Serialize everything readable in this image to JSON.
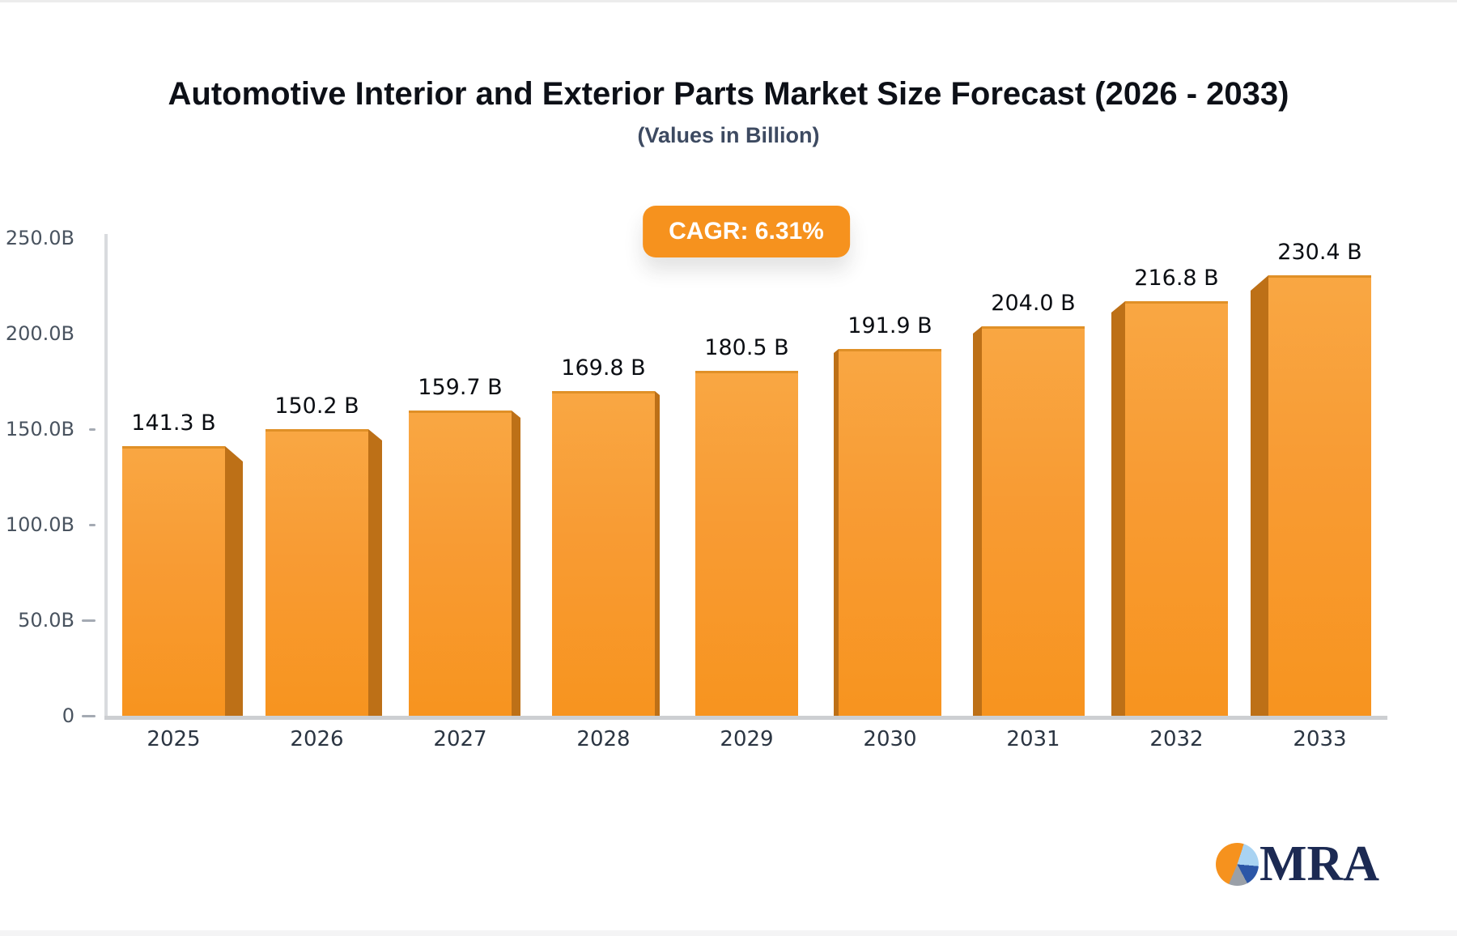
{
  "header": {
    "title": "Automotive Interior and Exterior Parts Market Size Forecast (2026 - 2033)",
    "subtitle": "(Values in Billion)"
  },
  "badge": {
    "label": "CAGR: 6.31%",
    "background": "#F6921E",
    "text_color": "#FFFFFF"
  },
  "chart_data": {
    "type": "bar",
    "title": "Automotive Interior and Exterior Parts Market Size Forecast (2026 - 2033)",
    "subtitle": "(Values in Billion)",
    "annotation": "CAGR: 6.31%",
    "categories": [
      "2025",
      "2026",
      "2027",
      "2028",
      "2029",
      "2030",
      "2031",
      "2032",
      "2033"
    ],
    "values": [
      141.3,
      150.2,
      159.7,
      169.8,
      180.5,
      191.9,
      204.0,
      216.8,
      230.4
    ],
    "value_labels": [
      "141.3 B",
      "150.2 B",
      "159.7 B",
      "169.8 B",
      "180.5 B",
      "191.9 B",
      "204.0 B",
      "216.8 B",
      "230.4 B"
    ],
    "xlabel": "",
    "ylabel": "",
    "ylim": [
      0,
      250
    ],
    "y_ticks": [
      {
        "value": 250,
        "label": "250.0B"
      },
      {
        "value": 200,
        "label": "200.0B"
      },
      {
        "value": 150,
        "label": "150.0B"
      },
      {
        "value": 100,
        "label": "100.0B"
      },
      {
        "value": 50,
        "label": "50.0B"
      },
      {
        "value": 0,
        "label": "0"
      }
    ],
    "grid": false,
    "legend": "none",
    "colors": {
      "bar_face_top": "#F9A743",
      "bar_face_mid": "#F89B33",
      "bar_face_bottom": "#F7941F",
      "bar_side": "#BD7017",
      "axis_line": "#d2d4d7",
      "value_label": "#0b0e13"
    }
  },
  "logo": {
    "text": "MRA",
    "text_color": "#1C2A53",
    "pie_colors": {
      "orange": "#F6921E",
      "light_blue": "#A9D3F2",
      "dark_blue": "#2B56A7",
      "gray": "#9AA0A8"
    }
  }
}
